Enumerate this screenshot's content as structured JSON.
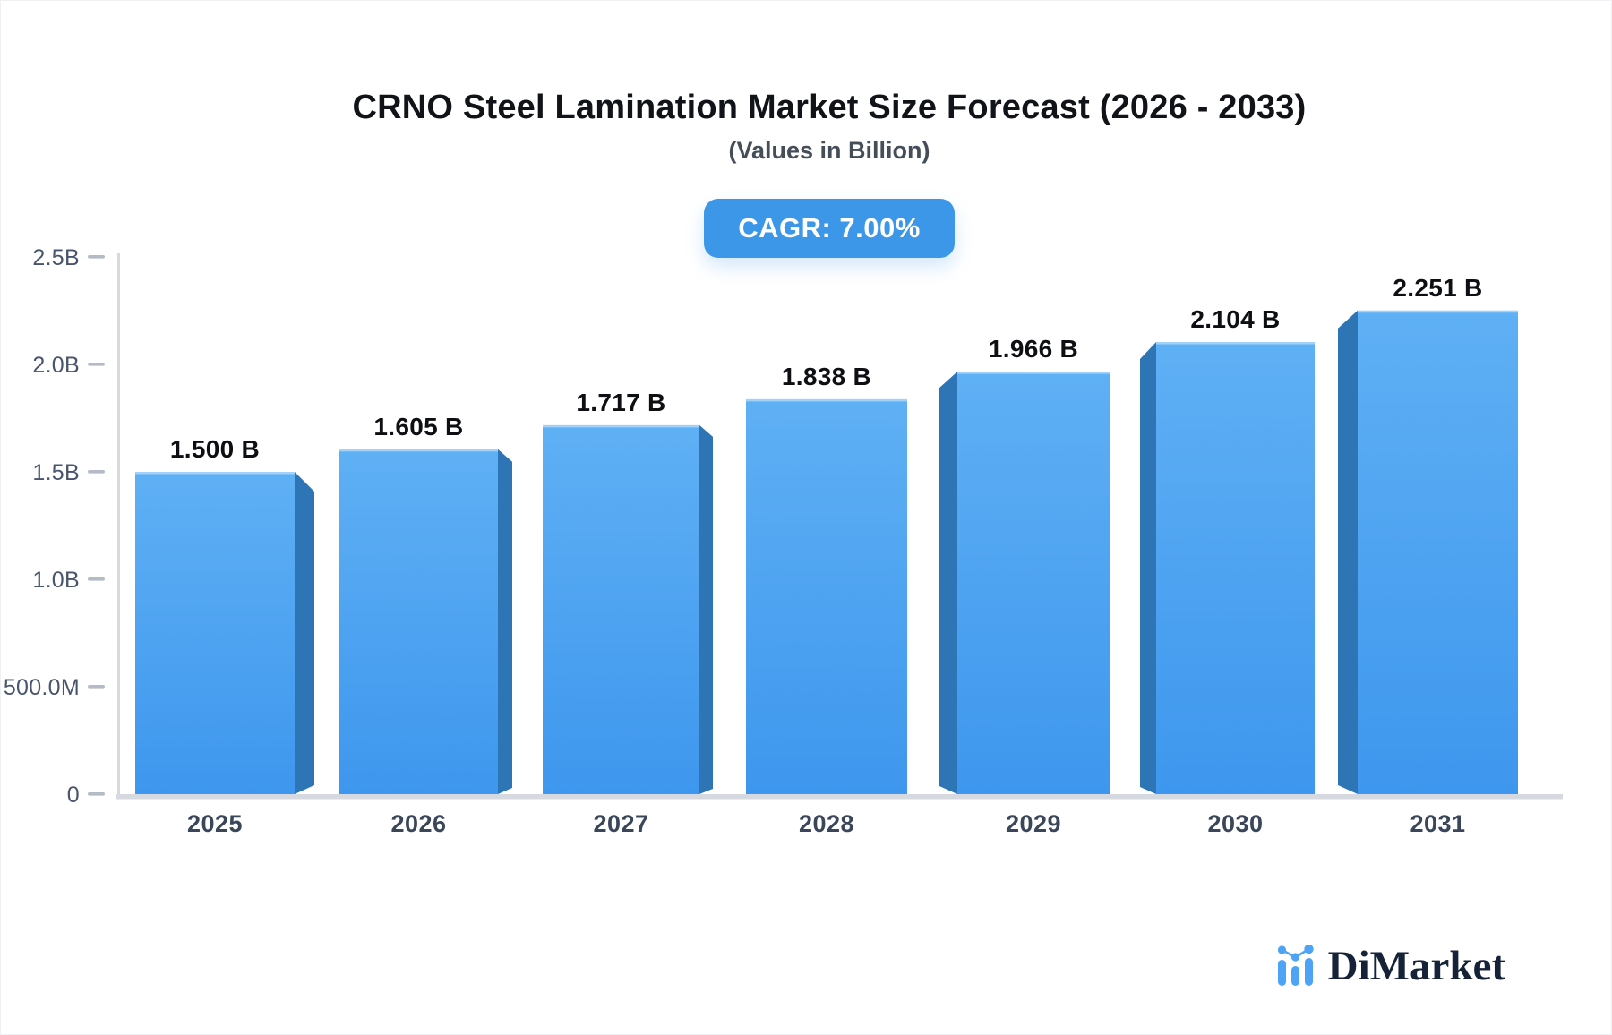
{
  "header": {
    "title": "CRNO Steel Lamination Market Size Forecast (2026 - 2033)",
    "subtitle": "(Values in Billion)",
    "cagr_badge": "CAGR: 7.00%"
  },
  "chart_data": {
    "type": "bar",
    "title": "CRNO Steel Lamination Market Size Forecast (2026 - 2033)",
    "subtitle": "(Values in Billion)",
    "unit": "Billion",
    "cagr": "7.00%",
    "categories": [
      "2025",
      "2026",
      "2027",
      "2028",
      "2029",
      "2030",
      "2031"
    ],
    "values": [
      1.5,
      1.605,
      1.717,
      1.838,
      1.966,
      2.104,
      2.251
    ],
    "bar_labels": [
      "1.500 B",
      "1.605 B",
      "1.717 B",
      "1.838 B",
      "1.966 B",
      "2.104 B",
      "2.251 B"
    ],
    "ylim": [
      0,
      2.5
    ],
    "yticks": [
      {
        "value": 0.0,
        "label": "0"
      },
      {
        "value": 0.5,
        "label": "500.0M"
      },
      {
        "value": 1.0,
        "label": "1.0B"
      },
      {
        "value": 1.5,
        "label": "1.5B"
      },
      {
        "value": 2.0,
        "label": "2.0B"
      },
      {
        "value": 2.5,
        "label": "2.5B"
      }
    ],
    "grid": false,
    "legend": false,
    "bar_style": "3d-beveled"
  },
  "colors": {
    "bar_top": "#5fb0f4",
    "bar_bottom": "#3e97ee",
    "bar_side": "#2e75b6",
    "axis": "#d6dae0",
    "tick_dash": "#b4bbc4",
    "badge_bg": "#3d97e9",
    "badge_text": "#ffffff",
    "value_label": "#0d0f12",
    "category_label": "#3a4659",
    "ytick_label": "#49556c",
    "logo_blue": "#4da3f5",
    "logo_text": "#152238"
  },
  "footer": {
    "brand": "DiMarket",
    "brand_icon": "mini-bar-chart-logo-icon"
  }
}
